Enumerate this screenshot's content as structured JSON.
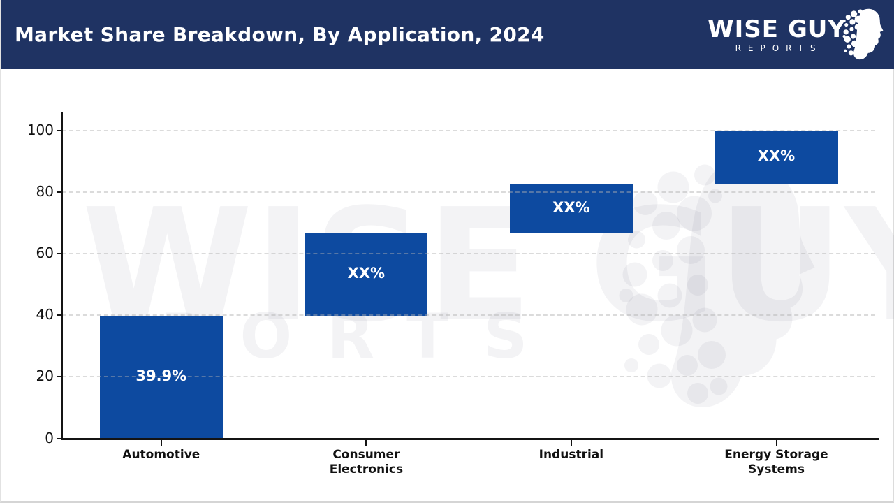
{
  "header": {
    "title": "Market Share Breakdown, By Application, 2024",
    "brand": {
      "line1": "WISE GUY",
      "line2": "REPORTS"
    }
  },
  "watermark": {
    "line1": "WISE GUY",
    "line2": "PORTS"
  },
  "colors": {
    "header_bg": "#1f3363",
    "bar_blue": "#0d4aa0",
    "bar_label": "#ffffff",
    "axis": "#141414",
    "grid": "#dcdcdc"
  },
  "chart_data": {
    "type": "bar",
    "subtype": "stacked-waterfall-breakdown",
    "title": "Market Share Breakdown, By Application, 2024",
    "categories": [
      "Automotive",
      "Consumer\nElectronics",
      "Industrial",
      "Energy Storage\nSystems"
    ],
    "segments": [
      {
        "category": "Automotive",
        "start": 0,
        "end": 39.9,
        "size": 39.9,
        "label": "39.9%"
      },
      {
        "category": "Consumer Electronics",
        "start": 39.9,
        "end": 66.6,
        "size": 26.7,
        "label": "XX%"
      },
      {
        "category": "Industrial",
        "start": 66.6,
        "end": 82.6,
        "size": 16.0,
        "label": "XX%"
      },
      {
        "category": "Energy Storage Systems",
        "start": 82.6,
        "end": 100,
        "size": 17.4,
        "label": "XX%"
      }
    ],
    "values": [
      39.9,
      26.7,
      16.0,
      17.4
    ],
    "value_labels": [
      "39.9%",
      "XX%",
      "XX%",
      "XX%"
    ],
    "yticks": [
      0,
      20,
      40,
      60,
      80,
      100
    ],
    "ylim": [
      0,
      106
    ],
    "xlabel": "",
    "ylabel": "",
    "grid": "dashed-horizontal",
    "legend": "none",
    "bar_color": "#0d4aa0",
    "label_color": "#ffffff"
  }
}
